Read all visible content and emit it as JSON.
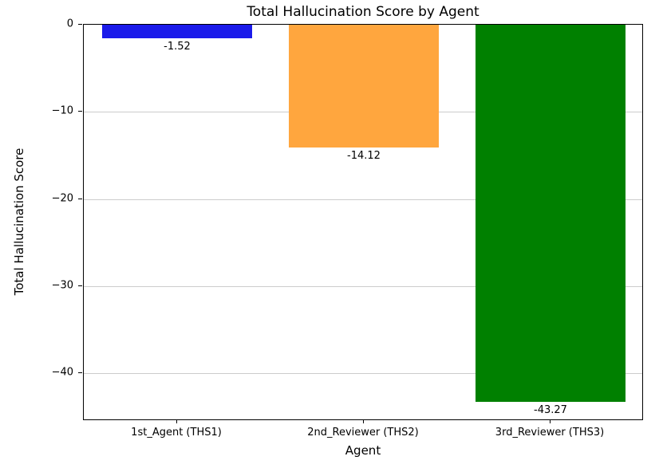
{
  "chart_data": {
    "type": "bar",
    "title": "Total Hallucination Score by Agent",
    "xlabel": "Agent",
    "ylabel": "Total Hallucination Score",
    "categories": [
      "1st_Agent (THS1)",
      "2nd_Reviewer (THS2)",
      "3rd_Reviewer (THS3)"
    ],
    "values": [
      -1.52,
      -14.12,
      -43.27
    ],
    "value_labels": [
      "-1.52",
      "-14.12",
      "-43.27"
    ],
    "bar_colors": [
      "#1b1bea",
      "#ffa63e",
      "#008000"
    ],
    "ylim": [
      -45.5,
      0
    ],
    "yticks": [
      0,
      -10,
      -20,
      -30,
      -40
    ],
    "ytick_labels": [
      "0",
      "−10",
      "−20",
      "−30",
      "−40"
    ],
    "grid": "horizontal",
    "grid_color": "#cccccc",
    "legend": "none",
    "bar_width_fraction": 0.8
  }
}
